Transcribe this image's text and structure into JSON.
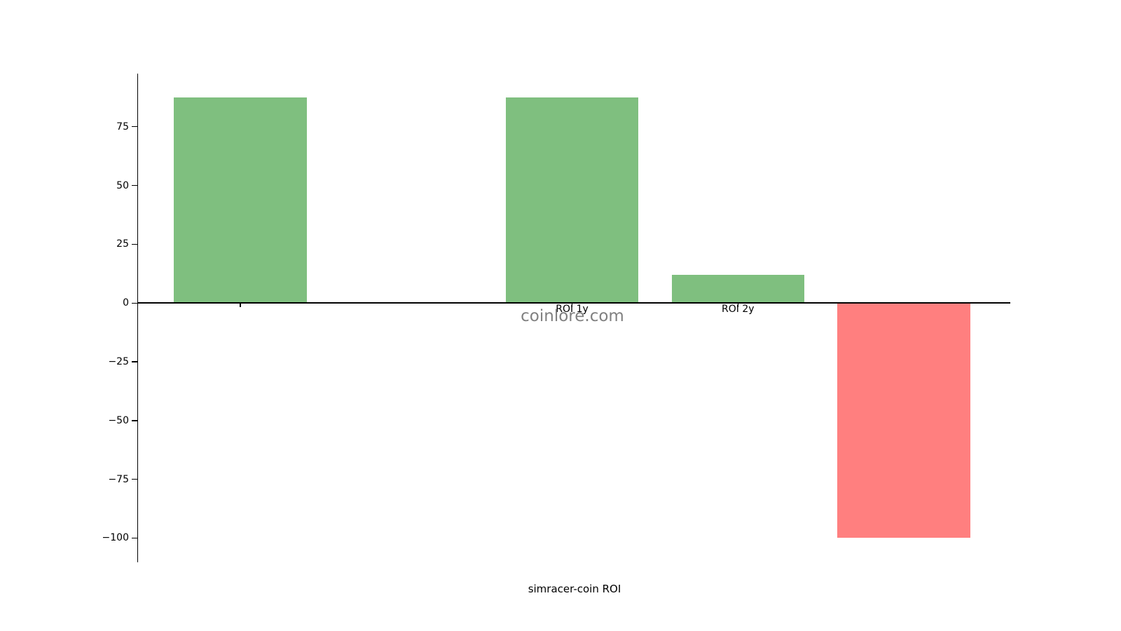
{
  "page": {
    "background": "#ffffff"
  },
  "chart_data": {
    "type": "bar",
    "title": "simracer-coin ROI",
    "watermark": "coinlore.com",
    "categories": [
      "",
      "ROI 1y",
      "ROI 2y",
      ""
    ],
    "x_positions": [
      0,
      2,
      3,
      4
    ],
    "values": [
      87.5,
      87.5,
      12,
      -100
    ],
    "bar_colors": [
      "#7fbf7f",
      "#7fbf7f",
      "#7fbf7f",
      "#ff7f7f"
    ],
    "positive_color": "#7fbf7f",
    "negative_color": "#ff7f7f",
    "bar_width_units": 0.8,
    "xlim": [
      -0.617,
      4.642
    ],
    "ylim": [
      -110.3,
      97.6
    ],
    "y_ticks": [
      {
        "value": 75,
        "label": "75"
      },
      {
        "value": 50,
        "label": "50"
      },
      {
        "value": 25,
        "label": "25"
      },
      {
        "value": 0,
        "label": "0"
      },
      {
        "value": -25,
        "label": "−25"
      },
      {
        "value": -50,
        "label": "−50"
      },
      {
        "value": -75,
        "label": "−75"
      },
      {
        "value": -100,
        "label": "−100"
      }
    ],
    "x_ticks": [
      {
        "position": 0,
        "label": ""
      },
      {
        "position": 2,
        "label": "ROI 1y"
      },
      {
        "position": 3,
        "label": "ROI 2y"
      }
    ],
    "grid": false,
    "legend": false,
    "axis_color": "#000000",
    "text_color": "#000000",
    "watermark_color": "#808080"
  }
}
